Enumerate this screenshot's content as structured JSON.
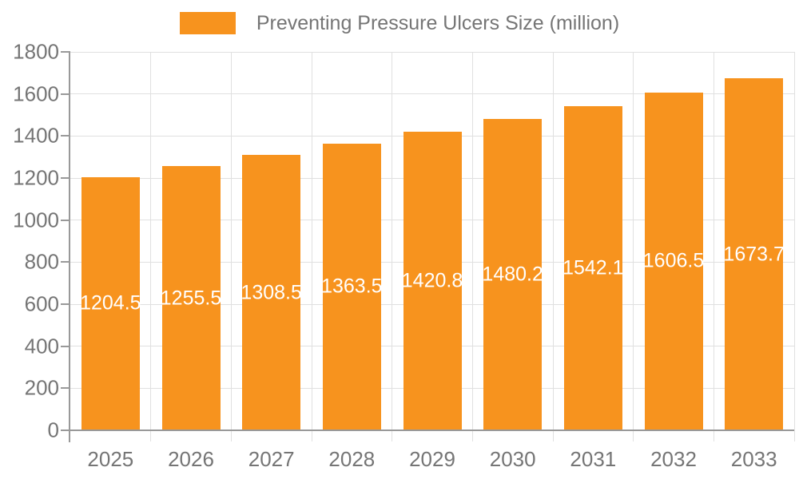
{
  "legend": {
    "label": "Preventing Pressure Ulcers Size (million)"
  },
  "chart_data": {
    "type": "bar",
    "title": "Preventing Pressure Ulcers Size (million)",
    "series_name": "Preventing Pressure Ulcers Size (million)",
    "categories": [
      "2025",
      "2026",
      "2027",
      "2028",
      "2029",
      "2030",
      "2031",
      "2032",
      "2033"
    ],
    "values": [
      1204.5,
      1255.5,
      1308.5,
      1363.5,
      1420.8,
      1480.2,
      1542.1,
      1606.5,
      1673.7
    ],
    "xlabel": "",
    "ylabel": "",
    "ylim": [
      0,
      1800
    ],
    "ytick_step": 200,
    "ytick_labels": [
      "0",
      "200",
      "400",
      "600",
      "800",
      "1000",
      "1200",
      "1400",
      "1600",
      "1800"
    ],
    "grid": true,
    "legend_position": "top-center",
    "bar_label_position": "inside-center",
    "colors": {
      "bar": "#f7931e",
      "bar_label": "#ffffff",
      "axis_line": "#999999",
      "grid_line": "#e0e0e0",
      "tick_label": "#757575",
      "legend_text": "#757575"
    }
  }
}
